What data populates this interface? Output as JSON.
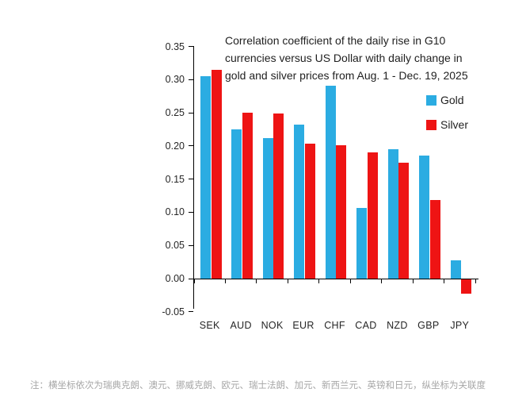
{
  "title_lines": [
    "Correlation coefficient of the daily rise in G10",
    "currencies versus US Dollar with daily change in",
    "gold and silver prices from Aug. 1 - Dec. 19, 2025"
  ],
  "legend": [
    {
      "label": "Gold",
      "color": "#2BACE2"
    },
    {
      "label": "Silver",
      "color": "#EE1414"
    }
  ],
  "note": "注：横坐标依次为瑞典克朗、澳元、挪威克朗、欧元、瑞士法朗、加元、新西兰元、英镑和日元，纵坐标为关联度",
  "chart_data": {
    "type": "bar",
    "title": "Correlation coefficient of the daily rise in G10 currencies versus US Dollar with daily change in gold and silver prices from Aug. 1 - Dec. 19, 2025",
    "categories": [
      "SEK",
      "AUD",
      "NOK",
      "EUR",
      "CHF",
      "CAD",
      "NZD",
      "GBP",
      "JPY"
    ],
    "series": [
      {
        "name": "Gold",
        "color": "#2BACE2",
        "values": [
          0.305,
          0.225,
          0.212,
          0.232,
          0.291,
          0.106,
          0.195,
          0.185,
          0.027
        ]
      },
      {
        "name": "Silver",
        "color": "#EE1414",
        "values": [
          0.315,
          0.25,
          0.249,
          0.204,
          0.201,
          0.19,
          0.175,
          0.119,
          -0.021
        ]
      }
    ],
    "xlabel": "",
    "ylabel": "",
    "ylim": [
      -0.05,
      0.35
    ],
    "ytick_step": 0.05,
    "ytick_labels": [
      "-0.05",
      "0.00",
      "0.05",
      "0.10",
      "0.15",
      "0.20",
      "0.25",
      "0.30",
      "0.35"
    ],
    "grid": false,
    "legend_position": "upper right"
  }
}
